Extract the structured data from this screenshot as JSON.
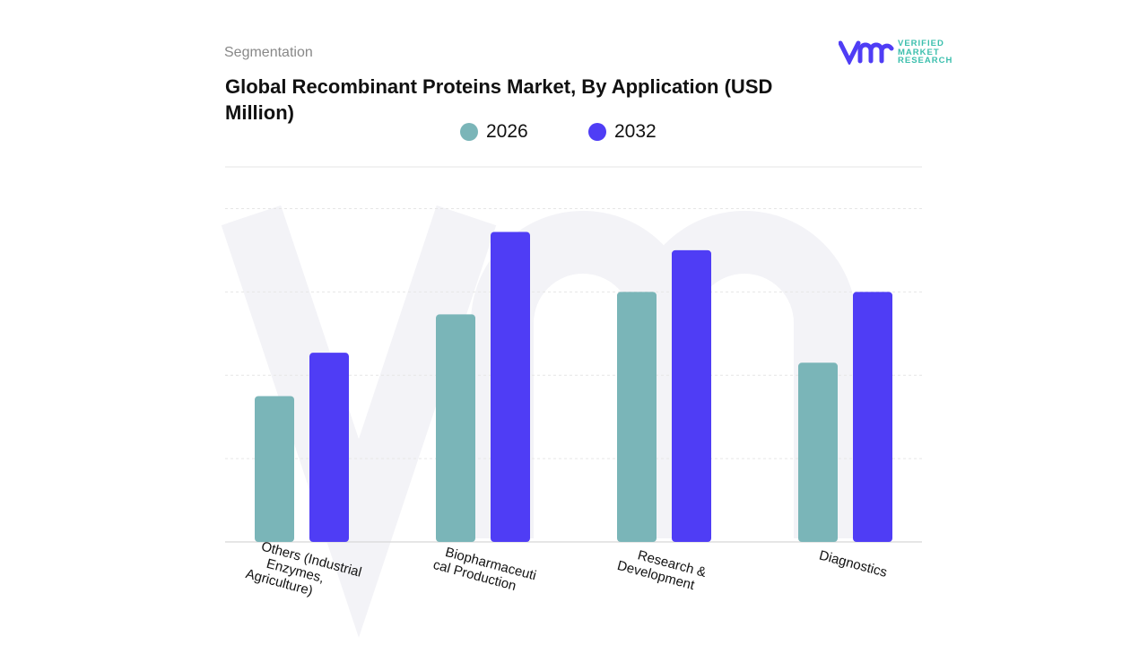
{
  "header": {
    "segment_label": "Segmentation",
    "title": "Global Recombinant Proteins Market, By Application (USD Million)"
  },
  "logo": {
    "lines": [
      "VERIFIED",
      "MARKET",
      "RESEARCH"
    ]
  },
  "chart_data": {
    "type": "bar",
    "title": "Global Recombinant Proteins Market, By Application (USD Million)",
    "categories": [
      [
        "Others (Industrial",
        "Enzymes,",
        "Agriculture)"
      ],
      [
        "Biopharmaceuti",
        "cal Production"
      ],
      [
        "Research &",
        "Development"
      ],
      [
        "Diagnostics"
      ]
    ],
    "series": [
      {
        "name": "2026",
        "color": "#7ab5b8",
        "values": [
          1.75,
          2.73,
          3.0,
          2.15
        ]
      },
      {
        "name": "2032",
        "color": "#4f3df5",
        "values": [
          2.27,
          3.72,
          3.5,
          3.0
        ]
      }
    ],
    "ylim": [
      0,
      4.5
    ],
    "gridlines": [
      1,
      2,
      3,
      4,
      4.5
    ],
    "grid": true,
    "legend_position": "top",
    "y_axis_labels_shown": false
  }
}
